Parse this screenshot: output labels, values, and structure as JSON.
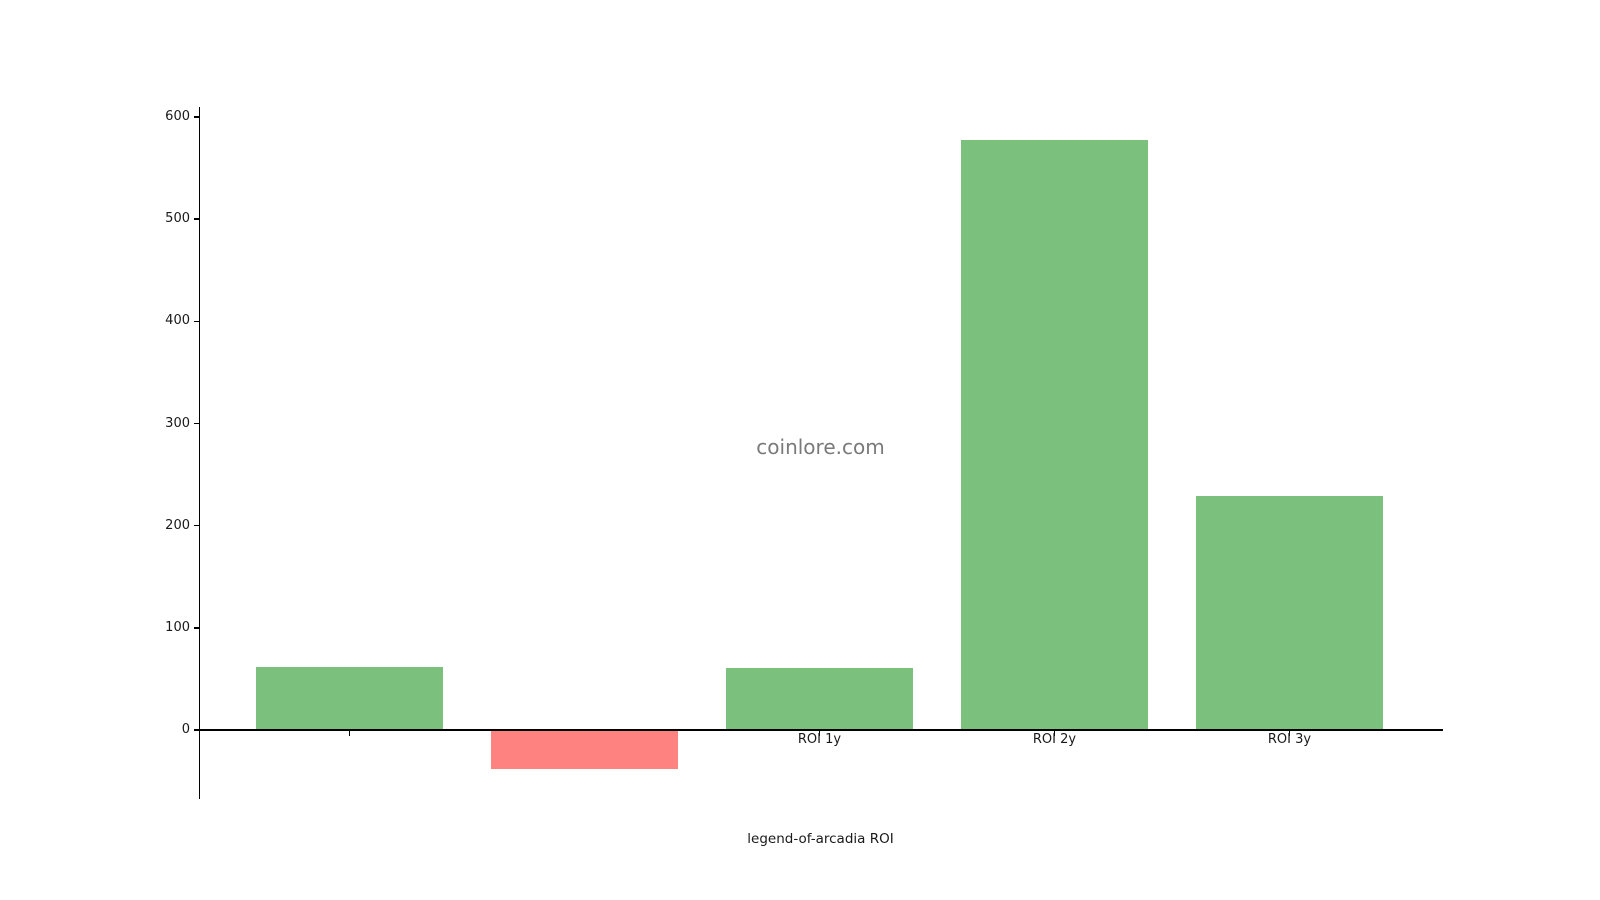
{
  "page": {
    "background_color": "#ffffff"
  },
  "chart_data": {
    "type": "bar",
    "title": "",
    "xlabel": "legend-of-arcadia ROI",
    "ylabel": "",
    "watermark": "coinlore.com",
    "categories": [
      "",
      "",
      "ROI 1y",
      "ROI 2y",
      "ROI 3y"
    ],
    "values": [
      62,
      -38,
      61,
      577,
      229
    ],
    "bar_colors": [
      "#7cc07e",
      "#fd8280",
      "#7cc07e",
      "#7cc07e",
      "#7cc07e"
    ],
    "positive_color": "#7cc07e",
    "negative_color": "#fd8280",
    "yticks": [
      0,
      100,
      200,
      300,
      400,
      500,
      600
    ],
    "ylim": [
      -68,
      610
    ],
    "grid": false,
    "legend_position": "none",
    "axis_color": "#000000",
    "tick_text_color": "#1a1a1a",
    "watermark_color": "#7a7a7a"
  }
}
